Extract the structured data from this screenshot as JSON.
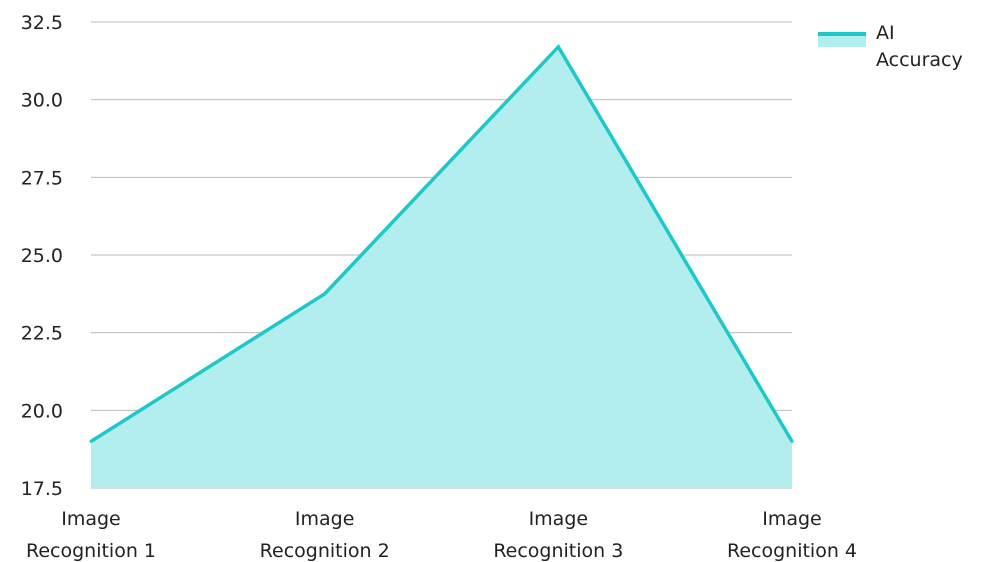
{
  "chart_data": {
    "type": "area",
    "categories": [
      "Image Recognition 1",
      "Image Recognition 2",
      "Image Recognition 3",
      "Image Recognition 4"
    ],
    "category_lines": [
      [
        "Image",
        "Recognition 1"
      ],
      [
        "Image",
        "Recognition 2"
      ],
      [
        "Image",
        "Recognition 3"
      ],
      [
        "Image",
        "Recognition 4"
      ]
    ],
    "series": [
      {
        "name": "AI Accuracy",
        "values": [
          19.0,
          23.75,
          31.7,
          19.0
        ]
      }
    ],
    "ylim": [
      17.5,
      32.5
    ],
    "yticks": [
      "17.5",
      "20.0",
      "22.5",
      "25.0",
      "27.5",
      "30.0",
      "32.5"
    ],
    "xlabel": "",
    "ylabel": "",
    "grid": true,
    "legend_position": "top-right",
    "colors": {
      "line": "#1ec8c8",
      "fill": "#b2eeee",
      "grid": "#bbbbbb"
    }
  }
}
